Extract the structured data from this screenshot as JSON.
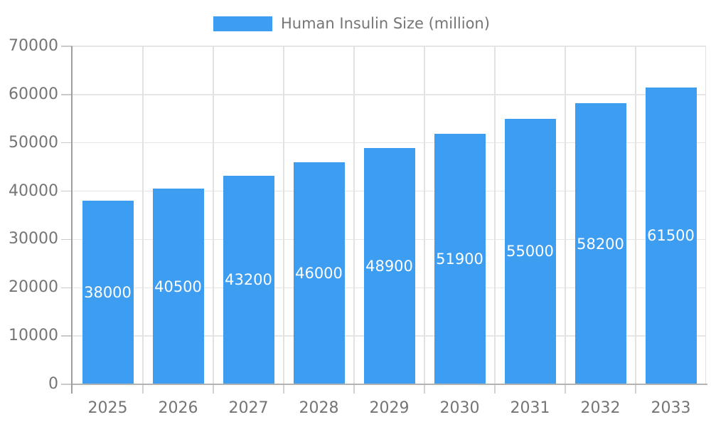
{
  "chart_data": {
    "type": "bar",
    "title": "Human Insulin Size (million)",
    "legend": {
      "label": "Human Insulin Size (million)",
      "position": "top-center"
    },
    "categories": [
      "2025",
      "2026",
      "2027",
      "2028",
      "2029",
      "2030",
      "2031",
      "2032",
      "2033"
    ],
    "series": [
      {
        "name": "Human Insulin Size (million)",
        "values": [
          38000,
          40500,
          43200,
          46000,
          48900,
          51900,
          55000,
          58200,
          61500
        ]
      }
    ],
    "xlabel": "",
    "ylabel": "",
    "ylim": [
      0,
      70000
    ],
    "ytick_step": 10000,
    "ytick_labels": [
      "0",
      "10000",
      "20000",
      "30000",
      "40000",
      "50000",
      "60000",
      "70000"
    ],
    "grid": true,
    "data_labels_inside_bars": true,
    "colors": {
      "bar": "#3D9DF0",
      "axis_text": "#757575",
      "legend_text": "#757575",
      "bar_label_text": "#FFFFFF",
      "gridline": "#E6E6E6",
      "vertical_gridline": "#E2E2E2",
      "y_axis_line": "#9E9E9E",
      "x_baseline": "#B3B3B3",
      "y_tick": "#C9C9C9",
      "x_tick": "#D2D2D2",
      "background": "#FFFFFF"
    }
  }
}
